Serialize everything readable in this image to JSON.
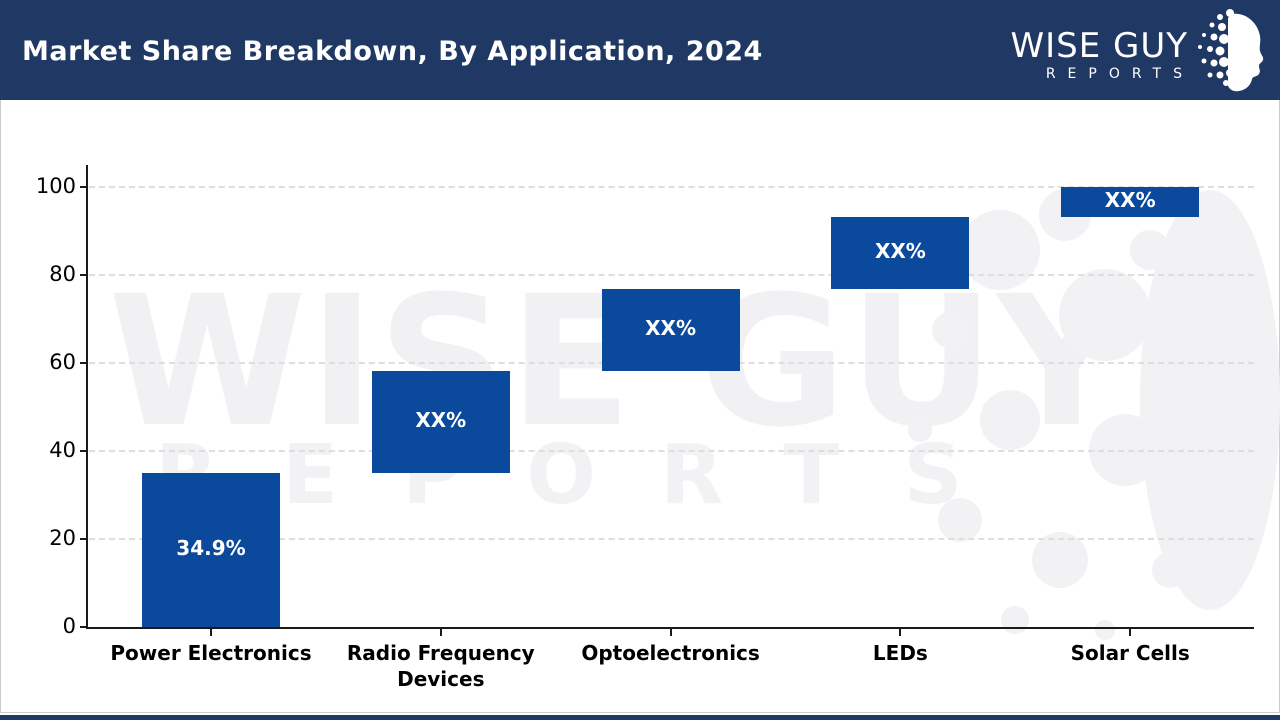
{
  "header": {
    "title": "Market Share Breakdown, By Application, 2024",
    "logo": {
      "line1": "WISE GUY",
      "line2": "REPORTS"
    }
  },
  "watermark": {
    "line1": "WISE GUY",
    "line2": "REPORTS"
  },
  "colors": {
    "header_bg": "#203864",
    "footer_bg": "#203864",
    "bar": "#0b499c",
    "bar_label": "#ffffff",
    "gridline": "#dedede",
    "axis": "#1a1a1a",
    "watermark": "#f1f1f4"
  },
  "chart_data": {
    "type": "bar",
    "variant": "waterfall",
    "title": "Market Share Breakdown, By Application, 2024",
    "categories": [
      "Power Electronics",
      "Radio Frequency Devices",
      "Optoelectronics",
      "LEDs",
      "Solar Cells"
    ],
    "bars": [
      {
        "category": "Power Electronics",
        "start": 0,
        "end": 34.9,
        "label": "34.9%"
      },
      {
        "category": "Radio Frequency Devices",
        "start": 34.9,
        "end": 58.2,
        "label": "XX%"
      },
      {
        "category": "Optoelectronics",
        "start": 58.2,
        "end": 76.8,
        "label": "XX%"
      },
      {
        "category": "LEDs",
        "start": 76.8,
        "end": 93.2,
        "label": "XX%"
      },
      {
        "category": "Solar Cells",
        "start": 93.2,
        "end": 100,
        "label": "XX%"
      }
    ],
    "yticks": [
      0,
      20,
      40,
      60,
      80,
      100
    ],
    "ylim": [
      0,
      105
    ],
    "grid": "horizontal-dashed",
    "legend": "none",
    "xlabel": "",
    "ylabel": ""
  }
}
